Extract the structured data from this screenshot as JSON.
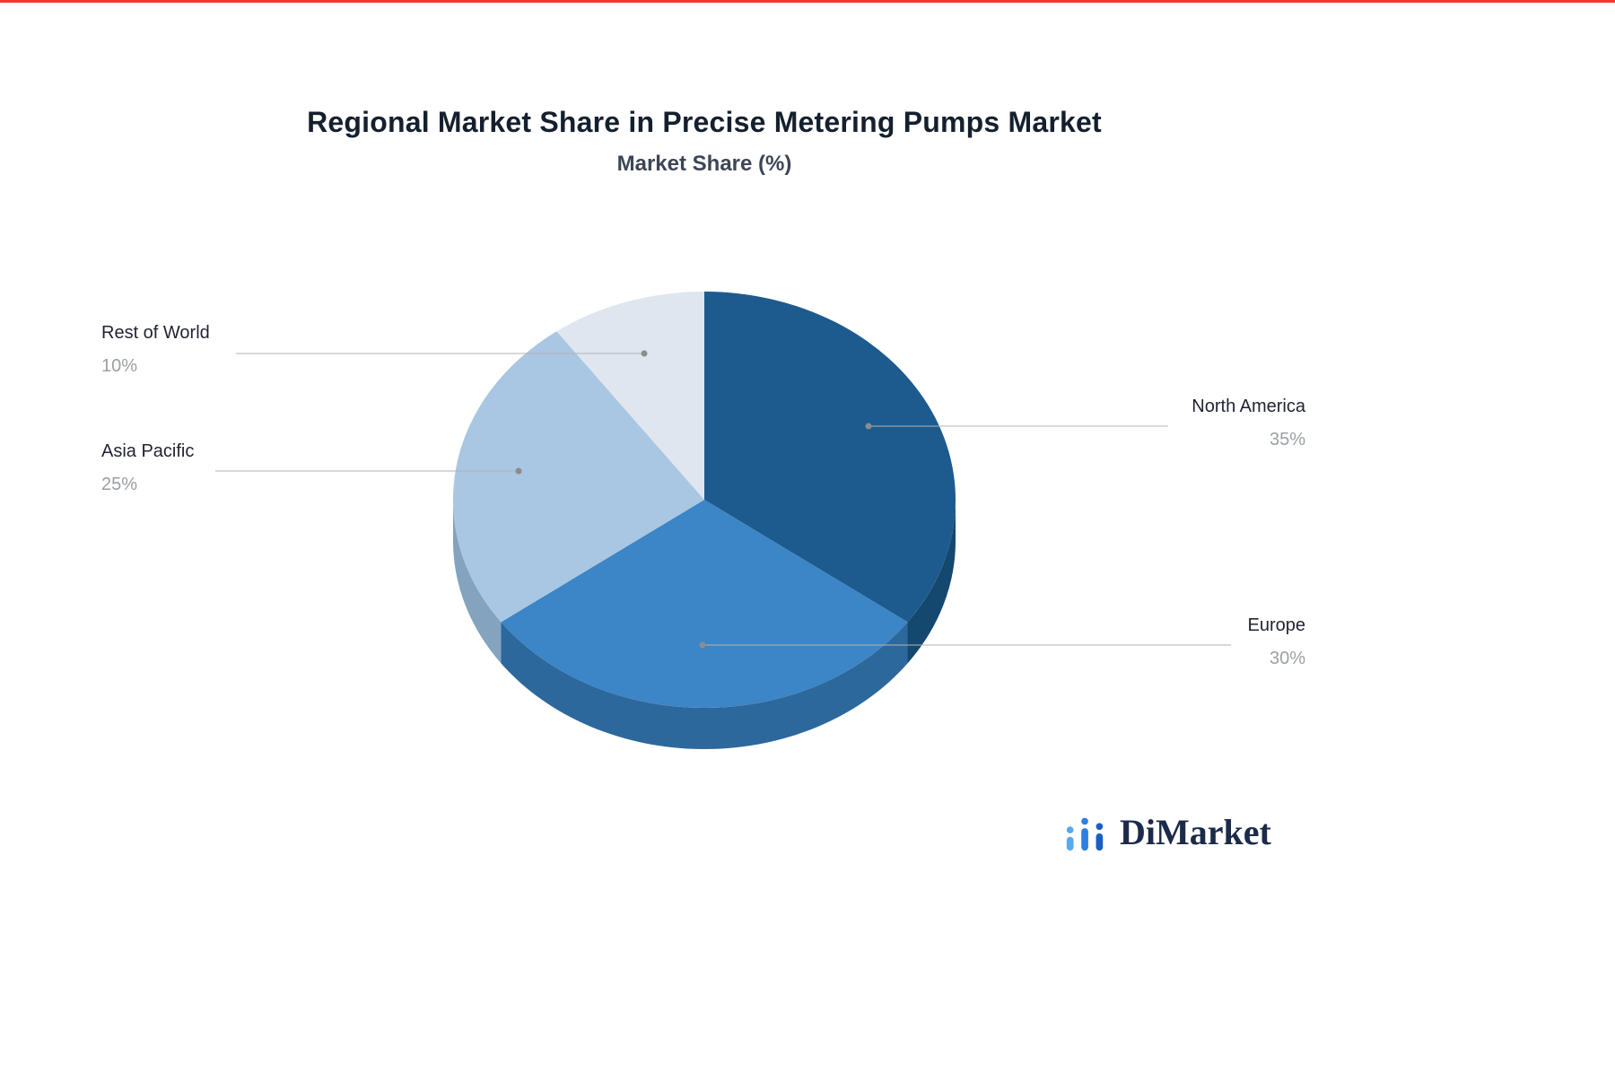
{
  "page": {
    "top_accent_color": "#f23b2d",
    "background": "#ffffff"
  },
  "chart_data": {
    "type": "pie",
    "style": "3d",
    "title": "Regional Market Share in Precise Metering Pumps Market",
    "subtitle": "Market Share (%)",
    "unit": "%",
    "direction": "clockwise",
    "start_angle_deg": 0,
    "legend_position": "none",
    "labels_show_percent": true,
    "slices": [
      {
        "label": "North America",
        "value": 35,
        "pct_label": "35%",
        "color": "#1d5b8e",
        "side_color": "#15486f",
        "label_side": "right"
      },
      {
        "label": "Europe",
        "value": 30,
        "pct_label": "30%",
        "color": "#3c85c6",
        "side_color": "#2d689c",
        "label_side": "right"
      },
      {
        "label": "Asia Pacific",
        "value": 25,
        "pct_label": "25%",
        "color": "#a9c6e2",
        "side_color": "#83a3bf",
        "label_side": "left"
      },
      {
        "label": "Rest of World",
        "value": 10,
        "pct_label": "10%",
        "color": "#dfe6f0",
        "side_color": "#b6c2d2",
        "label_side": "left"
      }
    ]
  },
  "brand": {
    "name": "DiMarket",
    "icon": "bar-chart-logo-icon",
    "text_color": "#1c2b4a",
    "icon_color": "#2e7fe0"
  },
  "colors": {
    "title": "#15202e",
    "subtitle": "#3d4656",
    "label_text": "#1f2430",
    "percent_text": "#9aa0a6",
    "leader_line": "#b3b3b3",
    "leader_dot": "#8c8c8c"
  }
}
